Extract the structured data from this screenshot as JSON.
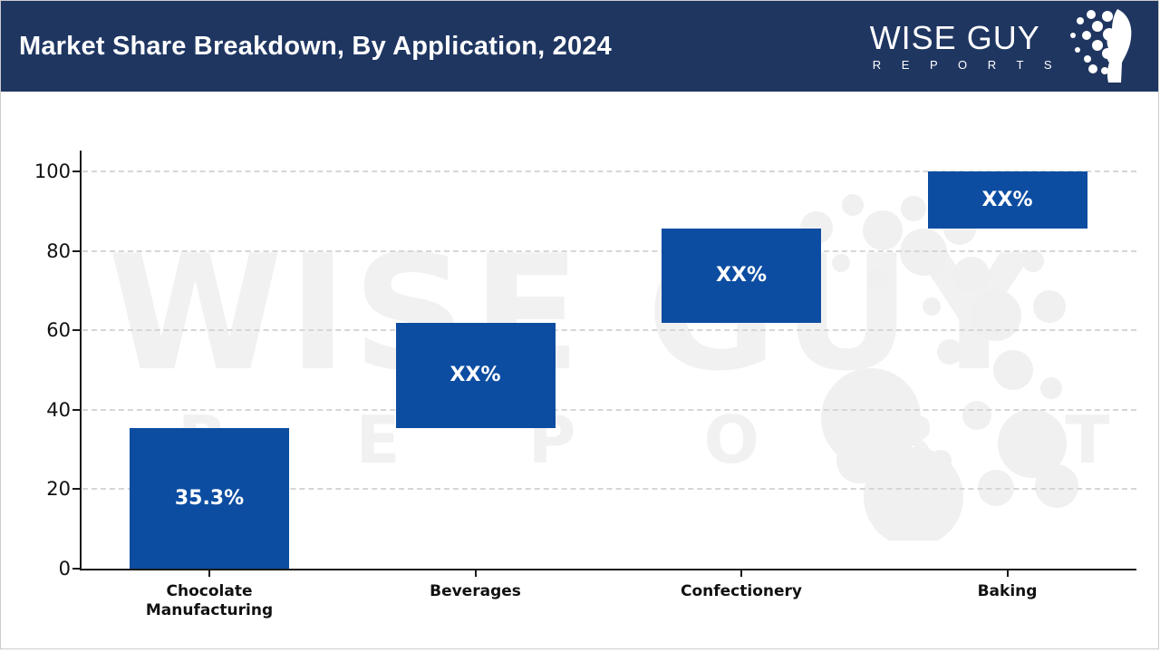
{
  "header": {
    "title": "Market Share Breakdown, By Application, 2024",
    "logo": {
      "line1": "WISE GUY",
      "line2": "R E P O R T S"
    }
  },
  "watermark": {
    "line1": "WISE GUY",
    "line2": "R E P O R T S"
  },
  "colors": {
    "header_bg": "#1f3661",
    "bar": "#0c4da1",
    "bar_label_text": "#ffffff",
    "grid": "#d6d6d6",
    "axis": "#1a1a1a",
    "watermark": "#f1f1f1"
  },
  "chart_data": {
    "type": "bar",
    "subtype": "waterfall",
    "title": "Market Share Breakdown, By Application, 2024",
    "categories": [
      "Chocolate Manufacturing",
      "Beverages",
      "Confectionery",
      "Baking"
    ],
    "segments": [
      {
        "category": "Chocolate Manufacturing",
        "start": 0,
        "end": 35.3,
        "label": "35.3%"
      },
      {
        "category": "Beverages",
        "start": 35.5,
        "end": 62,
        "label": "XX%"
      },
      {
        "category": "Confectionery",
        "start": 62,
        "end": 85.6,
        "label": "XX%"
      },
      {
        "category": "Baking",
        "start": 85.6,
        "end": 100,
        "label": "XX%"
      }
    ],
    "ylim": [
      0,
      100
    ],
    "yticks": [
      0,
      20,
      40,
      60,
      80,
      100
    ],
    "xlabel": "",
    "ylabel": "",
    "grid": "dashed-horizontal",
    "legend": "none"
  }
}
